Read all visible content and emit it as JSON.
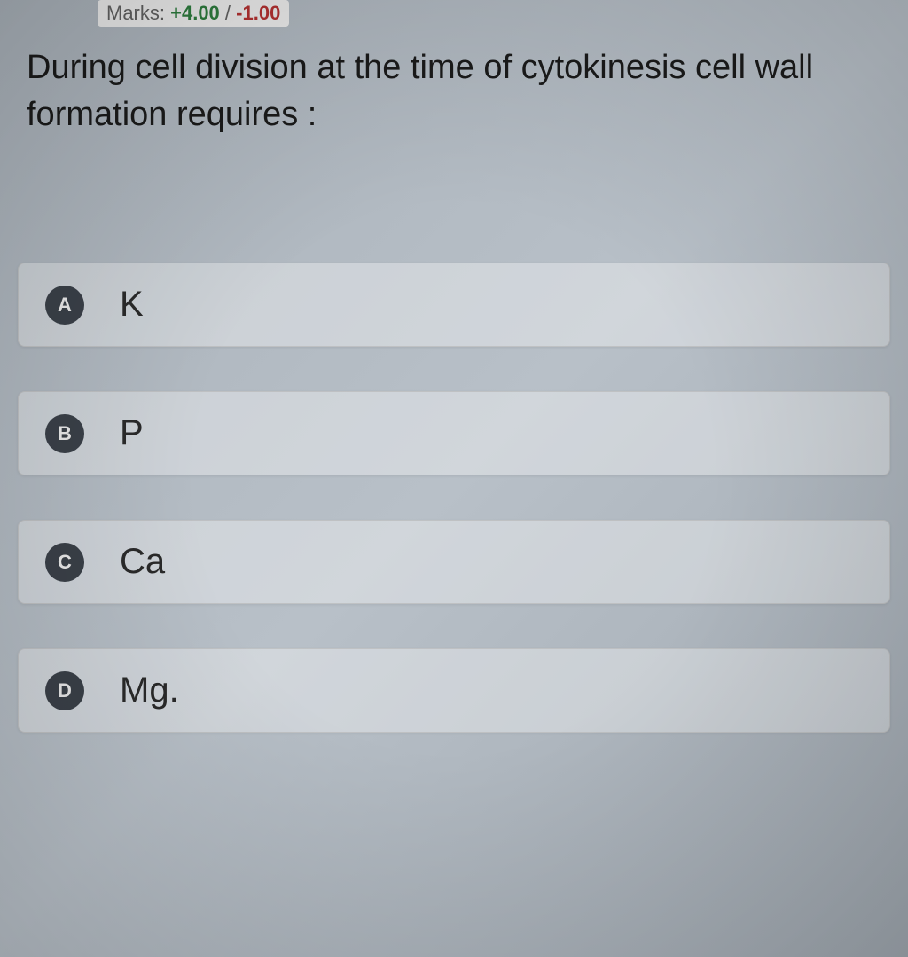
{
  "marks": {
    "label": "Marks:",
    "positive": "+4.00",
    "separator": "/",
    "negative": "-1.00"
  },
  "question": "During cell division at the time of cytokinesis cell wall formation requires :",
  "options": [
    {
      "letter": "A",
      "text": "K"
    },
    {
      "letter": "B",
      "text": "P"
    },
    {
      "letter": "C",
      "text": "Ca"
    },
    {
      "letter": "D",
      "text": "Mg."
    }
  ],
  "colors": {
    "background_start": "#a8b0b8",
    "background_end": "#a0a8b0",
    "badge_bg": "#3a4048",
    "badge_text": "#e8e8e8",
    "positive": "#2d7a3d",
    "negative": "#b03030",
    "question_text": "#1a1a1a",
    "option_text": "#2a2a2a"
  }
}
